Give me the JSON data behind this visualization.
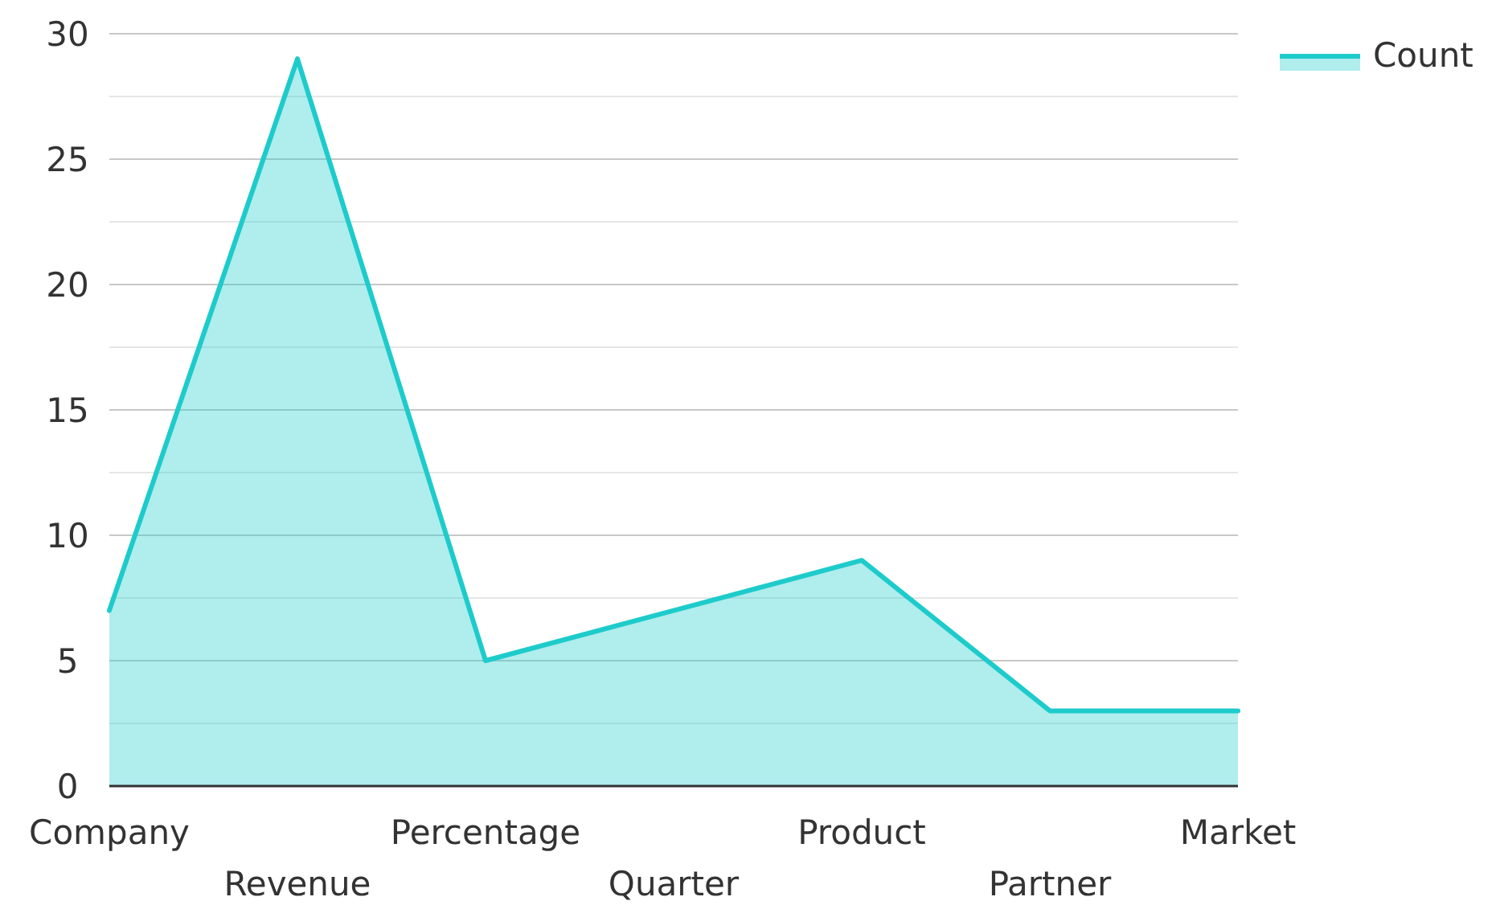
{
  "chart_data": {
    "type": "area",
    "categories": [
      "Company",
      "Revenue",
      "Percentage",
      "Quarter",
      "Product",
      "Partner",
      "Market"
    ],
    "series": [
      {
        "name": "Count",
        "color": "#1ecbcb",
        "values": [
          7,
          29,
          5,
          7,
          9,
          3,
          3
        ]
      }
    ],
    "ylim": [
      0,
      30
    ],
    "yticks": [
      0,
      {
        "value": 2.5,
        "label": null
      },
      5,
      {
        "value": 7.5,
        "label": null
      },
      10,
      {
        "value": 12.5,
        "label": null
      },
      15,
      {
        "value": 17.5,
        "label": null
      },
      20,
      {
        "value": 22.5,
        "label": null
      },
      25,
      {
        "value": 27.5,
        "label": null
      },
      30
    ],
    "grid": "y",
    "legend": "top right"
  }
}
